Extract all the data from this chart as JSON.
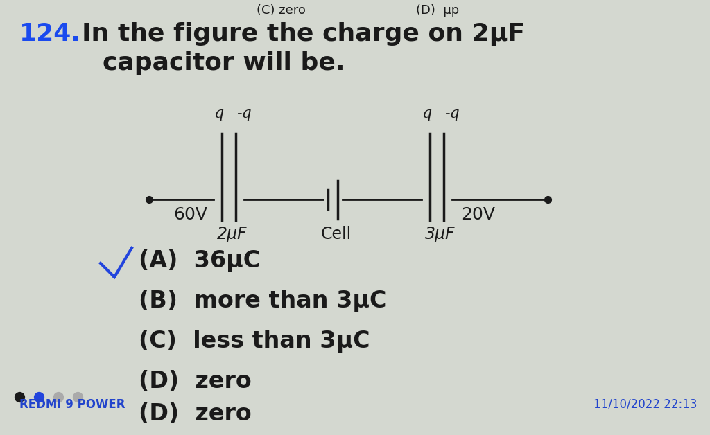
{
  "bg_color": "#d4d8d0",
  "title_number": "124.",
  "title_number_color": "#1a4aee",
  "question_line1": "In the figure the charge on 2μF",
  "question_line2": "capacitor will be.",
  "question_color": "#1a1a1a",
  "circuit": {
    "left_voltage": "60V",
    "right_voltage": "20V",
    "cap1_label": "2μF",
    "cap2_label": "3μF",
    "cell_label": "Cell",
    "charge_q": "q",
    "charge_mq": "-q"
  },
  "options": [
    "(A)  36μC",
    "(B)  more than 3μC",
    "(C)  less than 3μC",
    "(D)  zero"
  ],
  "option_a_color": "#1a1a1a",
  "option_color": "#1a1a1a",
  "checkmark_color": "#2244dd",
  "footer_left": "REDMI 9 POWER",
  "footer_right": "11/10/2022 22:13",
  "footer_color": "#2244cc",
  "top_text_left": "(C) zero",
  "top_text_right": "(D)  μp",
  "top_color": "#1a1a1a",
  "dots": [
    "#1a1a1a",
    "#2244dd",
    "#aaaaaa",
    "#aaaaaa"
  ],
  "wire_color": "#1a1a1a",
  "line_width": 2.0
}
